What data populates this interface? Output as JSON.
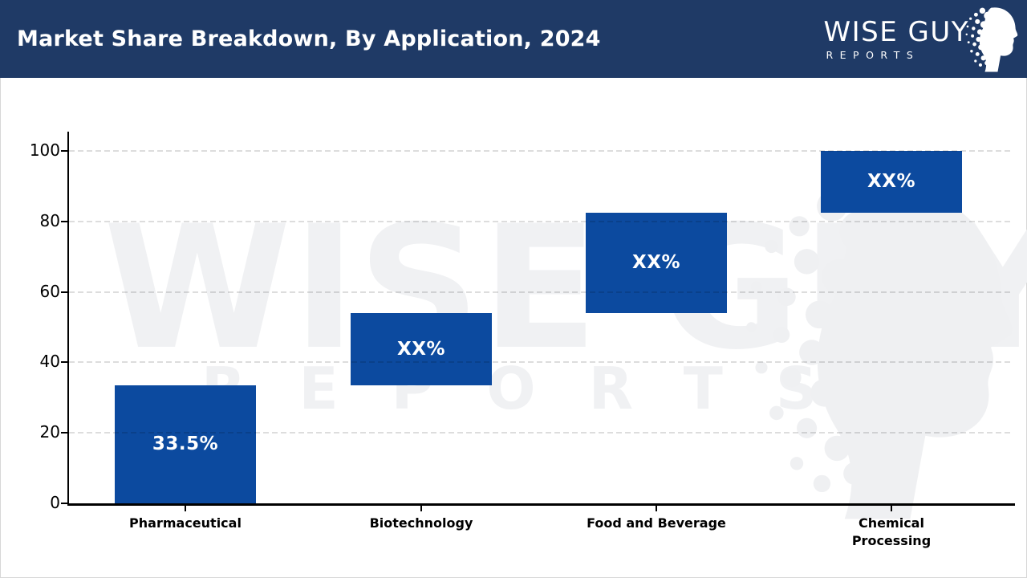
{
  "header": {
    "title": "Market Share Breakdown, By Application, 2024",
    "logo": {
      "primary": "WISE GUY",
      "secondary": "REPORTS"
    }
  },
  "watermark": {
    "line1": "WISE GUY",
    "line2": "REPORTS"
  },
  "colors": {
    "header_bg": "#1f3a66",
    "bar": "#0c4a9f",
    "axis": "#000000",
    "grid": "#dcdcdc",
    "bar_label": "#ffffff",
    "watermark": "#f0f1f3"
  },
  "chart_data": {
    "type": "bar",
    "subtype": "waterfall",
    "title": "Market Share Breakdown, By Application, 2024",
    "xlabel": "",
    "ylabel": "",
    "ylim": [
      0,
      106
    ],
    "yticks": [
      0,
      20,
      40,
      60,
      80,
      100
    ],
    "grid": "horizontal-dashed",
    "legend": "none",
    "bar_color": "#0c4a9f",
    "categories": [
      "Pharmaceutical",
      "Biotechnology",
      "Food and Beverage",
      "Chemical\nProcessing"
    ],
    "series": [
      {
        "name": "Market Share",
        "segments": [
          {
            "category": "Pharmaceutical",
            "start": 0,
            "end": 33.5,
            "value_label": "33.5%"
          },
          {
            "category": "Biotechnology",
            "start": 33.5,
            "end": 54,
            "value_label": "XX%"
          },
          {
            "category": "Food and Beverage",
            "start": 54,
            "end": 82.5,
            "value_label": "XX%"
          },
          {
            "category": "Chemical Processing",
            "start": 82.5,
            "end": 100,
            "value_label": "XX%"
          }
        ]
      }
    ]
  }
}
